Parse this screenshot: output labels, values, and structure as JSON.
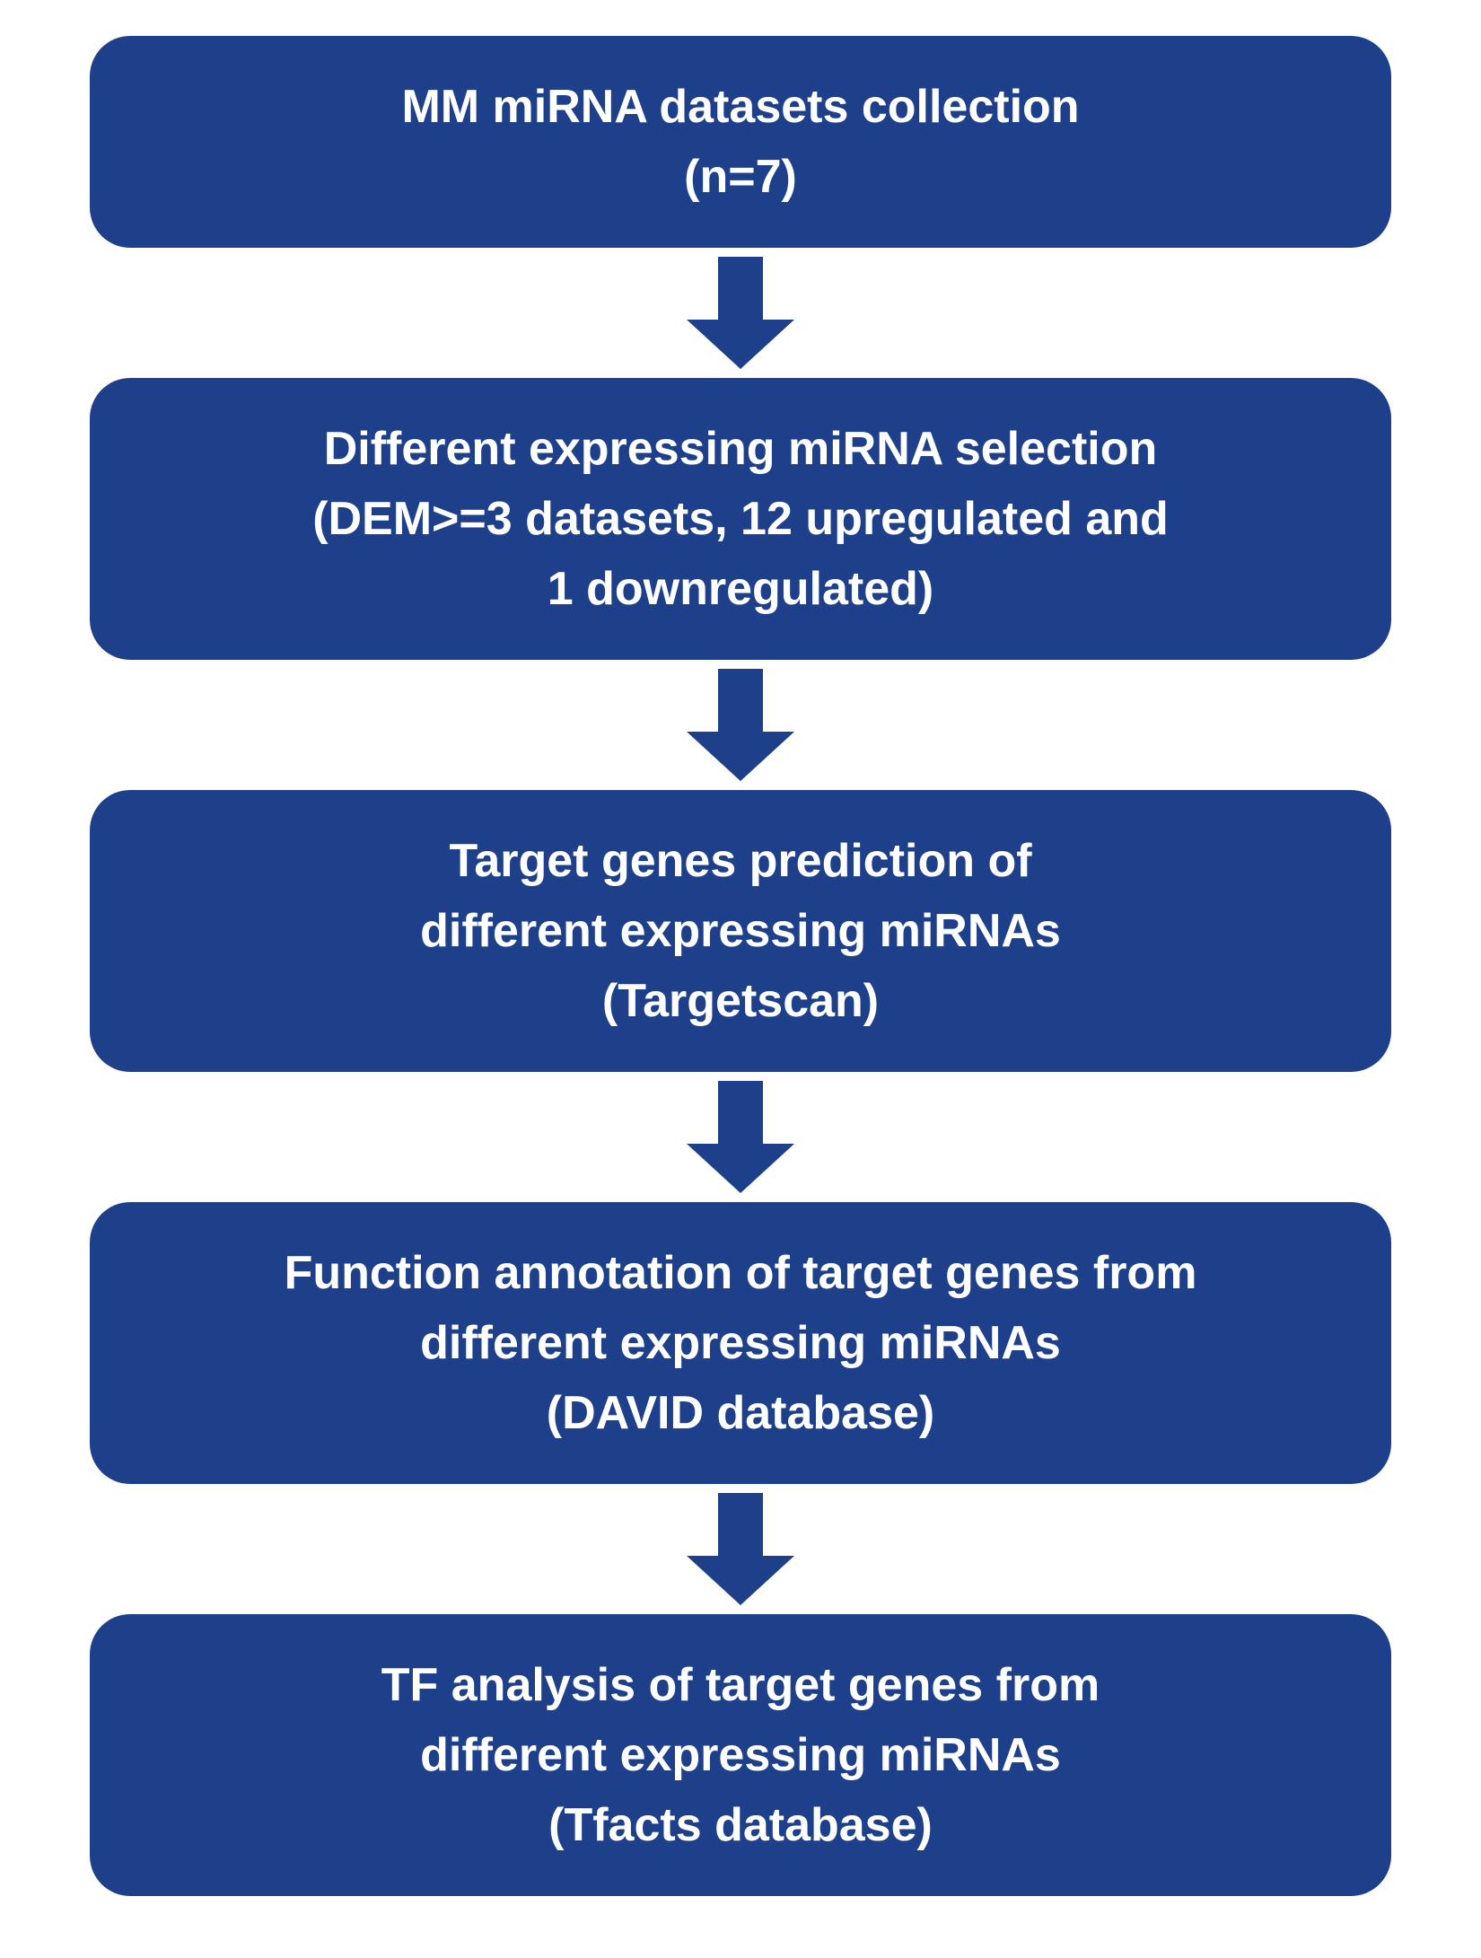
{
  "flowchart": {
    "type": "flowchart",
    "direction": "vertical",
    "node_color": "#1e3f8a",
    "text_color": "#ffffff",
    "arrow_color": "#1e3f8a",
    "background_color": "#ffffff",
    "border_radius": 45,
    "font_size": 52,
    "font_weight": "bold",
    "nodes": [
      {
        "id": "step1",
        "lines": [
          "MM miRNA datasets collection",
          "(n=7)"
        ]
      },
      {
        "id": "step2",
        "lines": [
          "Different expressing miRNA selection",
          "(DEM>=3 datasets, 12 upregulated and",
          "1 downregulated)"
        ]
      },
      {
        "id": "step3",
        "lines": [
          "Target genes prediction of",
          "different expressing miRNAs",
          "(Targetscan)"
        ]
      },
      {
        "id": "step4",
        "lines": [
          "Function annotation of target genes from",
          "different expressing miRNAs",
          "(DAVID database)"
        ]
      },
      {
        "id": "step5",
        "lines": [
          "TF analysis of target genes from",
          "different expressing miRNAs",
          "(Tfacts database)"
        ]
      }
    ]
  }
}
